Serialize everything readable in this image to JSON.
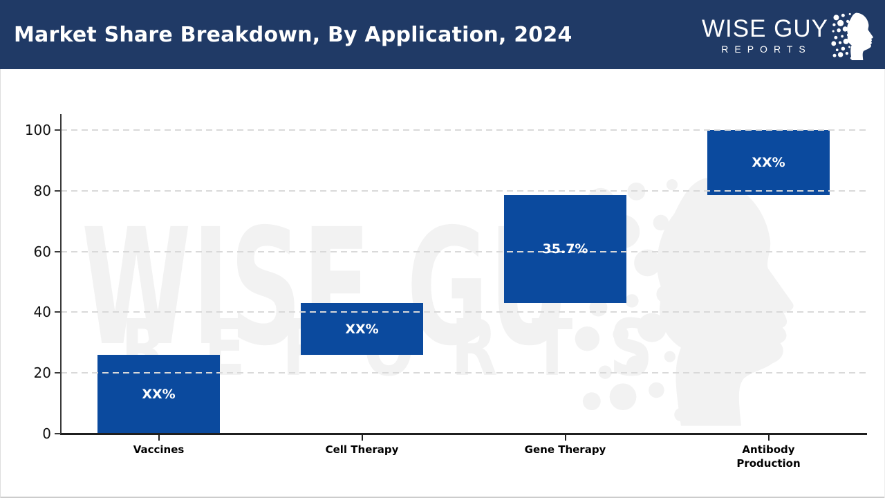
{
  "header": {
    "title": "Market Share Breakdown, By Application, 2024",
    "bg_color": "#203a66",
    "logo": {
      "line1": "WISE GUY",
      "line2": "REPORTS"
    }
  },
  "watermark": {
    "line1": "WISE GU",
    "line2": "REPORTS",
    "color": "#f2f2f2"
  },
  "chart_data": {
    "type": "bar",
    "subtype": "floating-waterfall",
    "title": "Market Share Breakdown, By Application, 2024",
    "categories": [
      "Vaccines",
      "Cell Therapy",
      "Gene Therapy",
      "Antibody Production"
    ],
    "series": [
      {
        "name": "Market Share %",
        "segments": [
          {
            "category": "Vaccines",
            "start": 0,
            "end": 26,
            "label": "XX%"
          },
          {
            "category": "Cell Therapy",
            "start": 26,
            "end": 43,
            "label": "XX%"
          },
          {
            "category": "Gene Therapy",
            "start": 43,
            "end": 78.7,
            "label": "35.7%"
          },
          {
            "category": "Antibody Production",
            "start": 78.7,
            "end": 100,
            "label": "XX%"
          }
        ]
      }
    ],
    "xlabel": "",
    "ylabel": "",
    "ylim": [
      0,
      100
    ],
    "yticks": [
      0,
      20,
      40,
      60,
      80,
      100
    ],
    "grid": "horizontal-dashed",
    "legend": "none",
    "bar_color": "#0b4a9e",
    "bar_label_color": "#ffffff",
    "gridline_color": "#d9d9d9"
  }
}
